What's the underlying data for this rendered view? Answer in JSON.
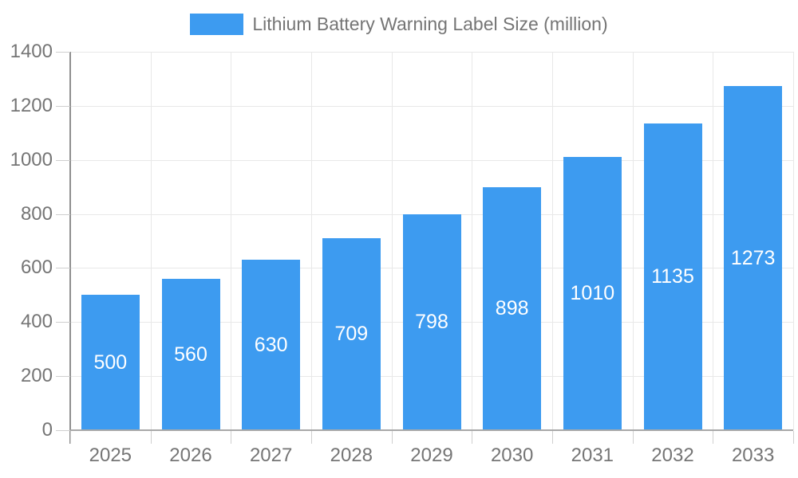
{
  "chart_data": {
    "type": "bar",
    "legend": "Lithium Battery Warning Label Size (million)",
    "legend_position": "top",
    "categories": [
      "2025",
      "2026",
      "2027",
      "2028",
      "2029",
      "2030",
      "2031",
      "2032",
      "2033"
    ],
    "values": [
      500,
      560,
      630,
      709,
      798,
      898,
      1010,
      1135,
      1273
    ],
    "y_ticks": [
      0,
      200,
      400,
      600,
      800,
      1000,
      1200,
      1400
    ],
    "ylim": [
      0,
      1400
    ],
    "grid": true,
    "xlabel": "",
    "ylabel": "",
    "colors": {
      "bar": "#3D9BF0",
      "axis_text": "#757575",
      "value_label": "#FFFFFF",
      "gridline": "#E8E8E8",
      "y_axis_line": "#8F8F8F",
      "x_axis_line": "#A8A8A8",
      "tick": "#CFCFCF",
      "background": "#FFFFFF"
    }
  }
}
